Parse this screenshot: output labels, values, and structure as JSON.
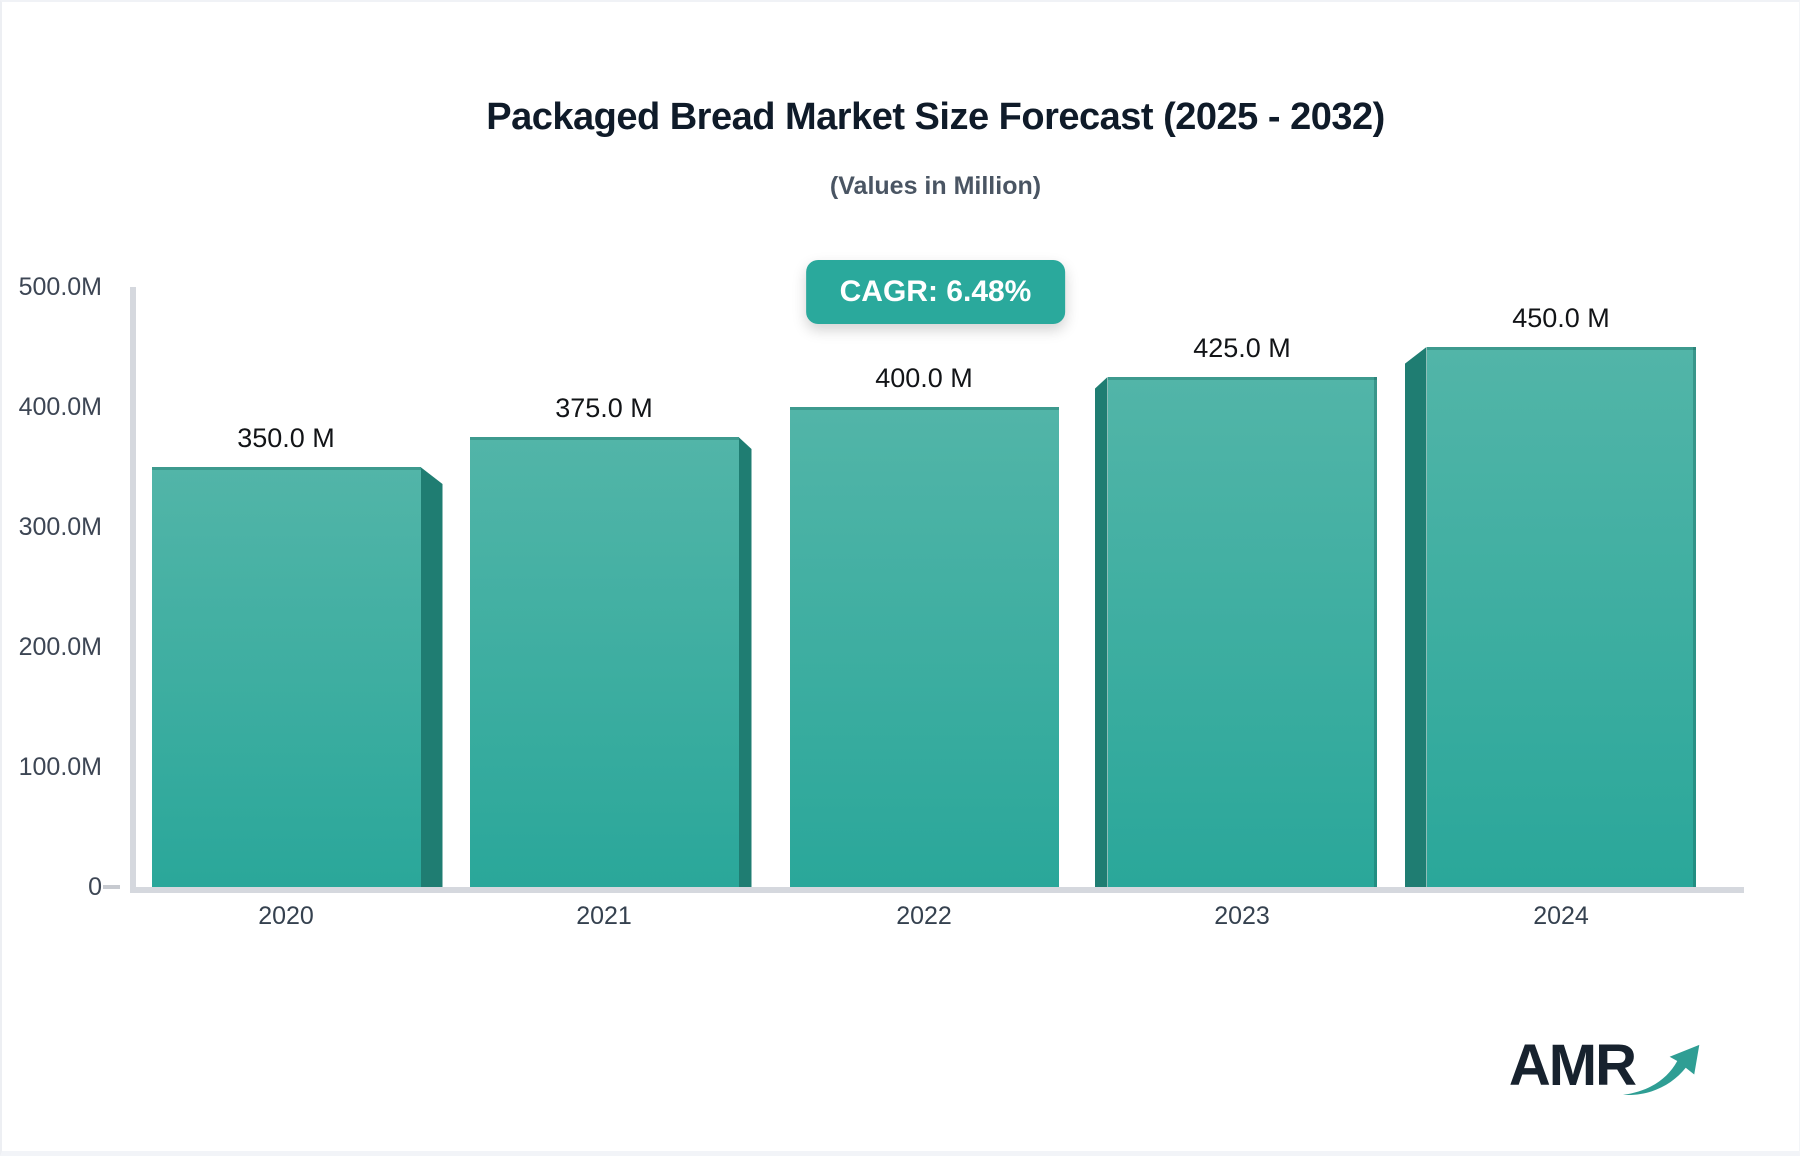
{
  "header": {
    "title": "Packaged Bread Market Size Forecast (2025 - 2032)",
    "subtitle": "(Values in Million)",
    "cagr_badge": "CAGR: 6.48%"
  },
  "chart_data": {
    "type": "bar",
    "title": "Packaged Bread Market Size Forecast (2025 - 2032)",
    "subtitle": "(Values in Million)",
    "unit": "Million",
    "cagr": "6.48%",
    "categories": [
      "2020",
      "2021",
      "2022",
      "2023",
      "2024"
    ],
    "values": [
      350,
      375,
      400,
      425,
      450
    ],
    "bar_labels": [
      "350.0 M",
      "375.0 M",
      "400.0 M",
      "425.0 M",
      "450.0 M"
    ],
    "y_ticks": [
      {
        "label": "500.0M",
        "value": 500
      },
      {
        "label": "400.0M",
        "value": 400
      },
      {
        "label": "300.0M",
        "value": 300
      },
      {
        "label": "200.0M",
        "value": 200
      },
      {
        "label": "100.0M",
        "value": 100
      },
      {
        "label": "0",
        "value": 0
      }
    ],
    "ylim": [
      0,
      500
    ],
    "grid": false,
    "legend": "none",
    "colors": {
      "bar_gradient_top": "#52b5a8",
      "bar_gradient_bottom": "#2aa79a",
      "bar_side": "#1f7d72",
      "bar_edge": "#2c9488",
      "badge_bg": "#2aa99c",
      "badge_text": "#ffffff",
      "title_text": "#0f1b29",
      "subtitle_text": "#4a5563",
      "value_label_text": "#121417",
      "axis_label_text": "#3d4654",
      "x_label_text": "#35414f",
      "axis_line": "#d5d8de",
      "logo_text": "#17222e",
      "logo_arrow": "#2f9e94"
    }
  },
  "logo": {
    "text": "AMR",
    "icon": "growth-arrow-icon"
  }
}
